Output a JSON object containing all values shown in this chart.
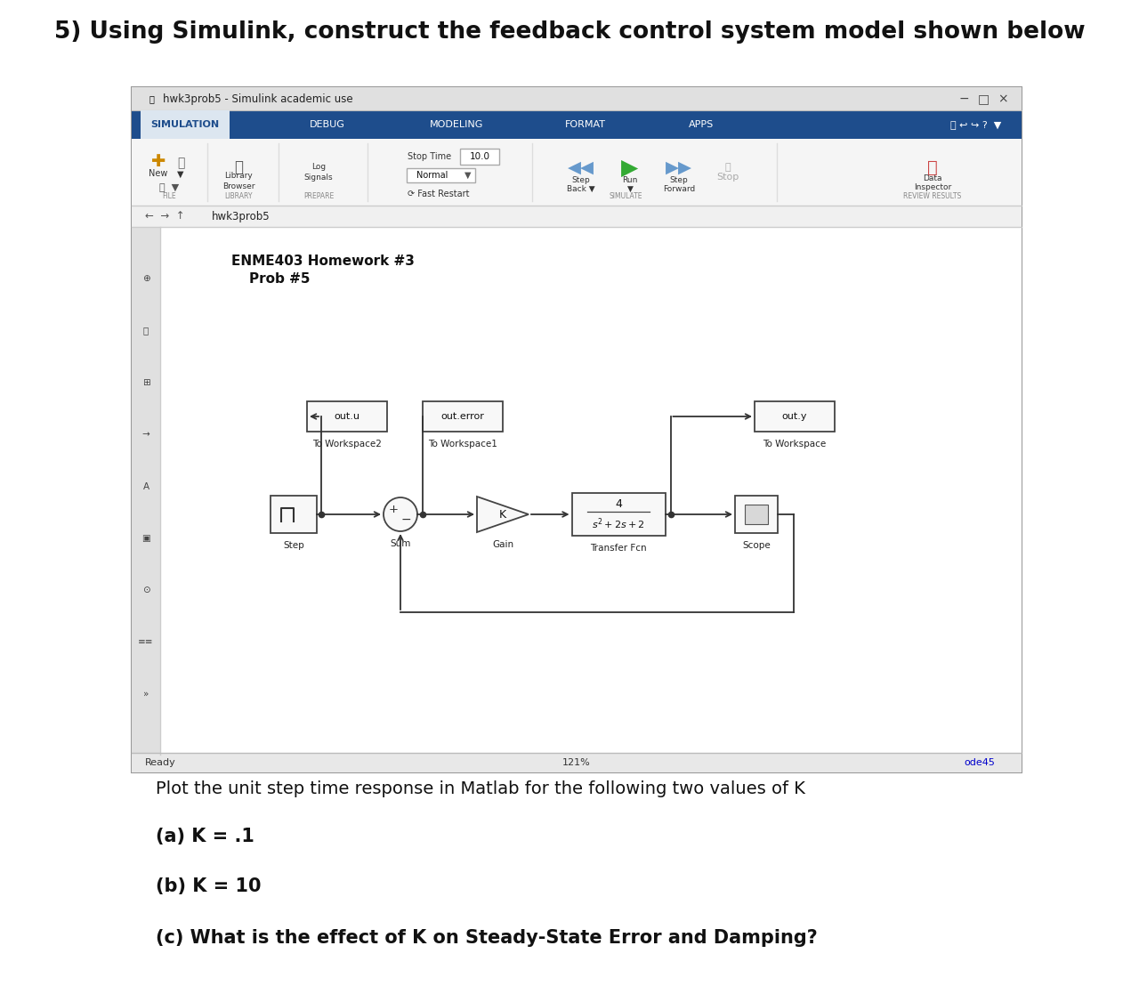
{
  "title": "5) Using Simulink, construct the feedback control system model shown below",
  "window_title": "hwk3prob5 - Simulink academic use",
  "tab_menu": [
    "SIMULATION",
    "DEBUG",
    "MODELING",
    "FORMAT",
    "APPS"
  ],
  "breadcrumb": "hwk3prob5",
  "diagram_title_line1": "ENME403 Homework #3",
  "diagram_title_line2": "Prob #5",
  "status_left": "Ready",
  "status_center": "121%",
  "status_right": "ode45",
  "bottom_texts": [
    "Plot the unit step time response in Matlab for the following two values of K",
    "(a) K = .1",
    "(b) K = 10",
    "(c) What is the effect of K on Steady-State Error and Damping?"
  ],
  "bg_color": "#ffffff",
  "toolbar_blue": "#1e4d8c",
  "sim_tab_bg": "#dce6f0",
  "ribbon_bg": "#f5f5f5",
  "canvas_bg": "#ffffff",
  "sidebar_bg": "#e8e8e8"
}
